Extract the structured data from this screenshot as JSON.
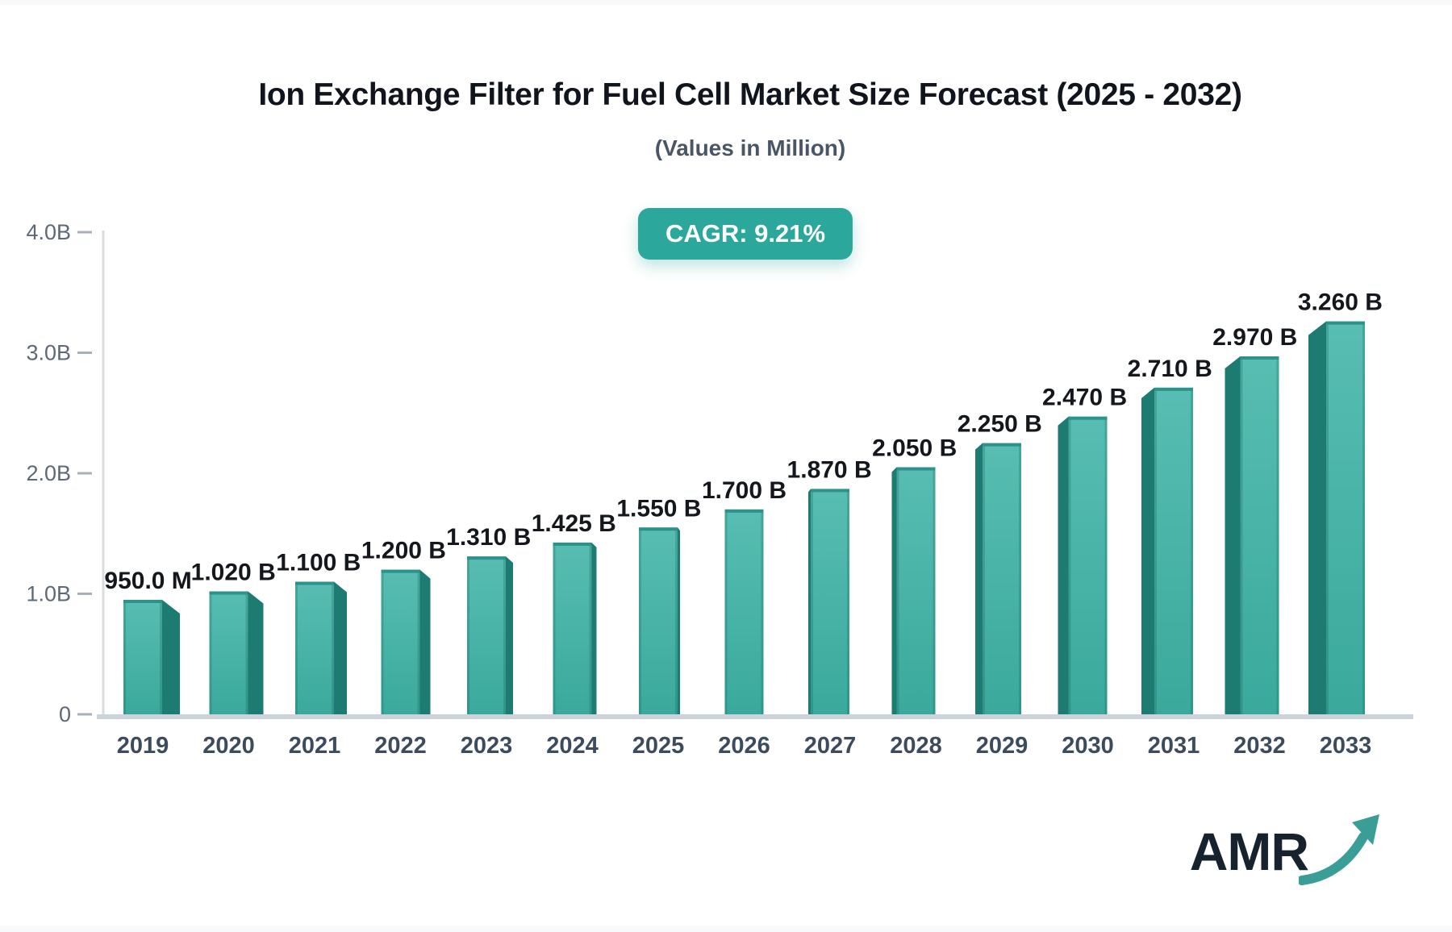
{
  "header": {
    "title": "Ion Exchange Filter for Fuel Cell Market Size Forecast (2025 - 2032)",
    "subtitle": "(Values in Million)",
    "cagr_badge": "CAGR: 9.21%"
  },
  "footer": {
    "logo_text": "AMR"
  },
  "chart_data": {
    "type": "bar",
    "title": "Ion Exchange Filter for Fuel Cell Market Size Forecast (2025 - 2032)",
    "subtitle": "(Values in Million)",
    "categories": [
      "2019",
      "2020",
      "2021",
      "2022",
      "2023",
      "2024",
      "2025",
      "2026",
      "2027",
      "2028",
      "2029",
      "2030",
      "2031",
      "2032",
      "2033"
    ],
    "values_billion": [
      0.95,
      1.02,
      1.1,
      1.2,
      1.31,
      1.425,
      1.55,
      1.7,
      1.87,
      2.05,
      2.25,
      2.47,
      2.71,
      2.97,
      3.26
    ],
    "value_labels": [
      "950.0 M",
      "1.020 B",
      "1.100 B",
      "1.200 B",
      "1.310 B",
      "1.425 B",
      "1.550 B",
      "1.700 B",
      "1.870 B",
      "2.050 B",
      "2.250 B",
      "2.470 B",
      "2.710 B",
      "2.970 B",
      "3.260 B"
    ],
    "xlabel": "",
    "ylabel": "",
    "ylim": [
      0,
      4
    ],
    "y_tick_labels": [
      "0",
      "1.0B",
      "2.0B",
      "3.0B",
      "4.0B"
    ],
    "y_tick_values": [
      0,
      1,
      2,
      3,
      4
    ],
    "grid": "off",
    "legend": "none",
    "cagr_percent": 9.21,
    "colors": {
      "bar_front_top": "#58bdb2",
      "bar_front_bottom": "#3aa99c",
      "bar_side": "#1d7b72",
      "bar_top_strip": "#2c938a",
      "badge_bg": "#2ba79c",
      "badge_text": "#ffffff",
      "value_text": "#14181c",
      "year_text": "#3c4b5d",
      "ytick_text": "#5d6977",
      "axis_line": "#d8dce1",
      "baseline": "#cdd3da",
      "tick_dash": "#a8b0b9",
      "logo_arrow": "#3a9e96"
    }
  }
}
